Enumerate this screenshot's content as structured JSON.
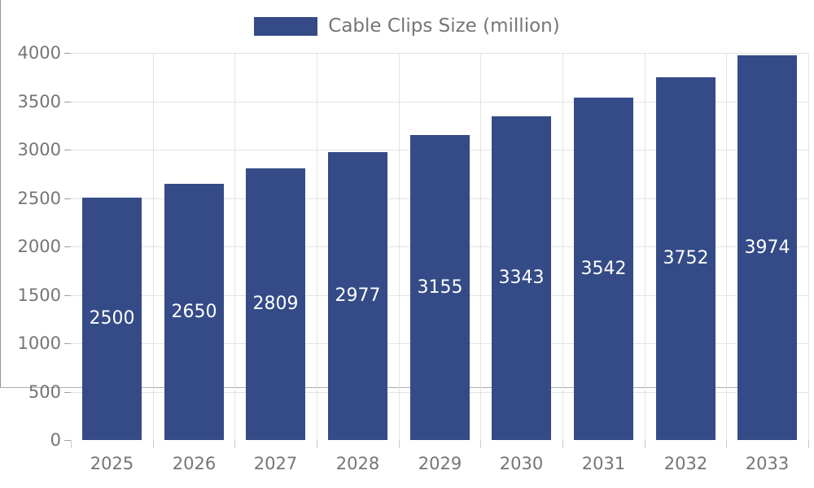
{
  "chart_data": {
    "type": "bar",
    "title": "Cable Clips Size (million)",
    "legend": [
      "Cable Clips Size (million)"
    ],
    "categories": [
      "2025",
      "2026",
      "2027",
      "2028",
      "2029",
      "2030",
      "2031",
      "2032",
      "2033"
    ],
    "series": [
      {
        "name": "Cable Clips Size (million)",
        "values": [
          2500,
          2650,
          2809,
          2977,
          3155,
          3343,
          3542,
          3752,
          3974
        ]
      }
    ],
    "bar_value_labels": [
      "2500",
      "2650",
      "2809",
      "2977",
      "3155",
      "3343",
      "3542",
      "3752",
      "3974"
    ],
    "xlabel": "",
    "ylabel": "",
    "ylim": [
      0,
      4000
    ],
    "ytick_step": 500,
    "yticks": [
      "0",
      "500",
      "1000",
      "1500",
      "2000",
      "2500",
      "3000",
      "3500",
      "4000"
    ],
    "grid": true,
    "legend_position": "top-center",
    "value_label_position": "inside-center",
    "colors": {
      "bar": "#344B87",
      "bar_value_text": "#ffffff",
      "axis_text": "#757575",
      "legend_text": "#757575",
      "gridline": "#e3e3e3",
      "y_axis_line": "#8f949b",
      "x_axis_line": "#adadad",
      "y_tick": "#9aa0a8",
      "x_tick": "#c3c9d6",
      "background": "#ffffff"
    }
  }
}
